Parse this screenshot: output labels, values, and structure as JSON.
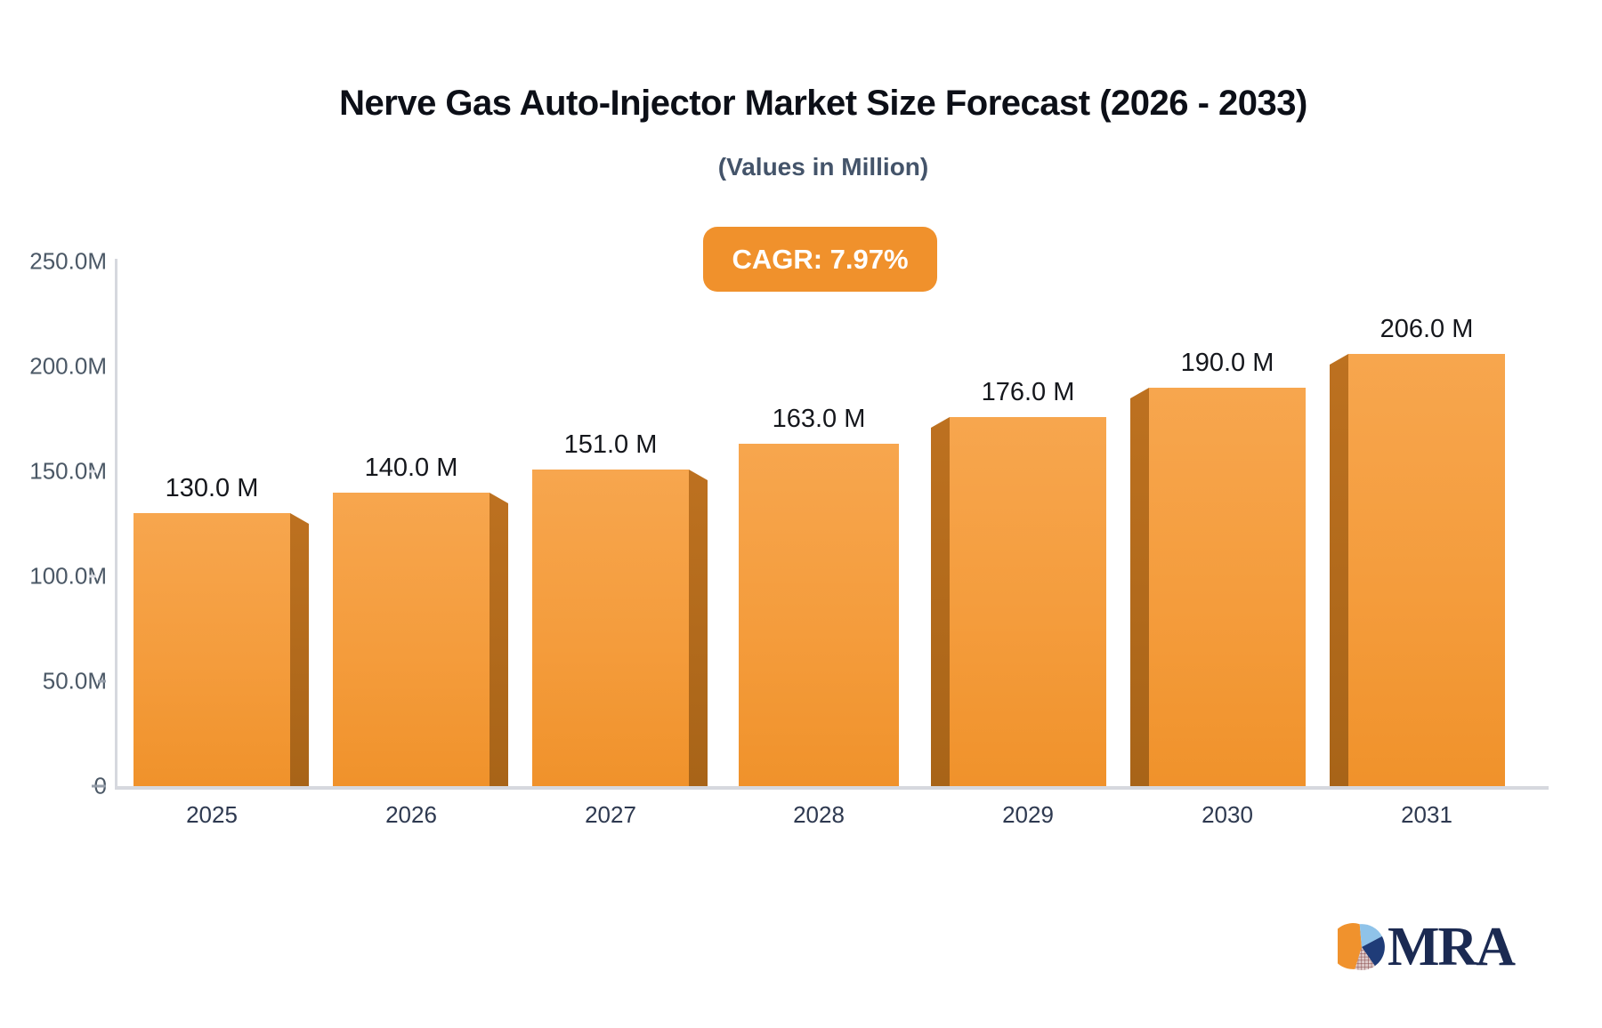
{
  "title": "Nerve Gas Auto-Injector Market Size Forecast (2026 - 2033)",
  "subtitle": "(Values in Million)",
  "badge": {
    "label": "CAGR: 7.97%",
    "background": "#F0912C",
    "text_color": "#FFFFFF"
  },
  "chart_data": {
    "type": "bar",
    "title": "Nerve Gas Auto-Injector Market Size Forecast (2026 - 2033)",
    "subtitle": "(Values in Million)",
    "annotation": "CAGR: 7.97%",
    "categories": [
      "2025",
      "2026",
      "2027",
      "2028",
      "2029",
      "2030",
      "2031"
    ],
    "values": [
      130,
      140,
      151,
      163,
      176,
      190,
      206
    ],
    "value_labels": [
      "130.0 M",
      "140.0 M",
      "151.0 M",
      "163.0 M",
      "176.0 M",
      "190.0 M",
      "206.0 M"
    ],
    "unit": "Million",
    "ylim": [
      0,
      250
    ],
    "ytick_values": [
      250,
      200,
      150,
      100,
      50,
      0
    ],
    "ytick_labels": [
      "250.0M",
      "200.0M",
      "150.0M",
      "100.0M",
      "50.0M",
      "0"
    ],
    "grid": false,
    "legend": "none",
    "bar_face_color_top": "#F7A64E",
    "bar_face_color_bottom": "#F0922B",
    "bar_side_color": "#BD7120",
    "axis_color": "#d6d8de"
  },
  "logo": {
    "text": "MRA",
    "pie_orange": "#F0922D",
    "pie_lightblue": "#8FC3E9",
    "pie_navy": "#1F3C78",
    "pie_hatch_line": "#8a4c4c",
    "pie_hatch_bg": "#ddcaca"
  }
}
